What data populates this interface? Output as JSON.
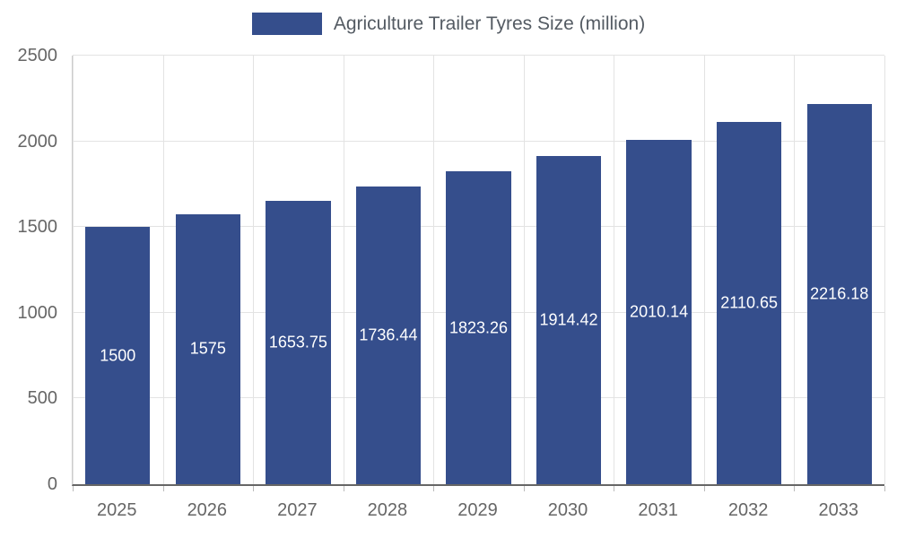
{
  "legend": {
    "label": "Agriculture Trailer Tyres Size (million)"
  },
  "chart_data": {
    "type": "bar",
    "title": "Agriculture Trailer Tyres Size (million)",
    "categories": [
      "2025",
      "2026",
      "2027",
      "2028",
      "2029",
      "2030",
      "2031",
      "2032",
      "2033"
    ],
    "values": [
      1500,
      1575,
      1653.75,
      1736.44,
      1823.26,
      1914.42,
      2010.14,
      2110.65,
      2216.18
    ],
    "value_labels": [
      "1500",
      "1575",
      "1653.75",
      "1736.44",
      "1823.26",
      "1914.42",
      "2010.14",
      "2110.65",
      "2216.18"
    ],
    "xlabel": "",
    "ylabel": "",
    "ylim": [
      0,
      2500
    ],
    "yticks": [
      0,
      500,
      1000,
      1500,
      2000,
      2500
    ],
    "grid": true,
    "legend_position": "top",
    "bar_color": "#354e8c",
    "bar_label_color": "#ffffff",
    "axis_label_color": "#666666",
    "gridline_color": "#e3e3e3"
  }
}
